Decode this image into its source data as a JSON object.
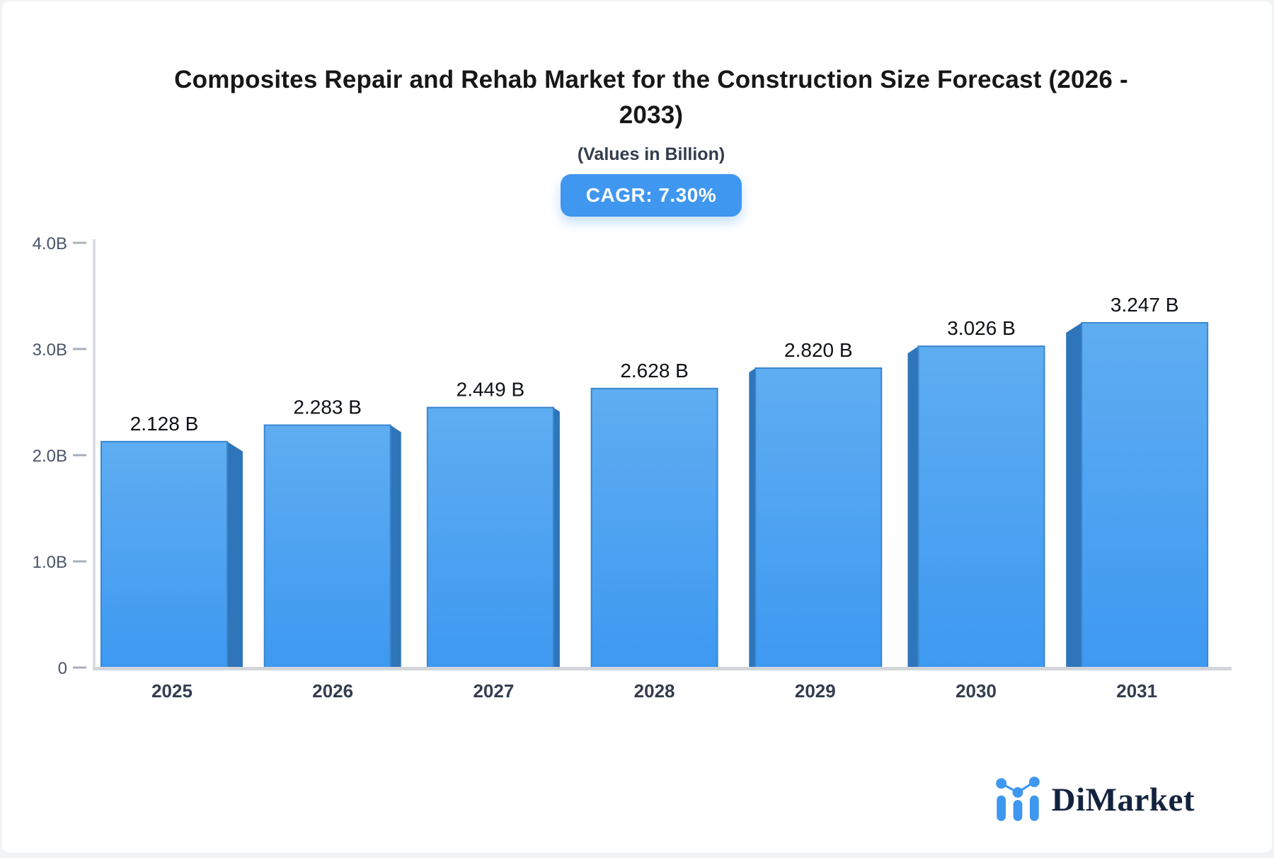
{
  "page": {
    "background_color": "#f2f3f5",
    "card_color": "#ffffff"
  },
  "header": {
    "title_lines": [
      "Composites Repair and Rehab Market for the Construction Size Forecast (2026 -",
      "2033)"
    ],
    "subtitle": "(Values in Billion)",
    "badge": {
      "label": "CAGR: 7.30%",
      "background": "#3F97F0",
      "text_color": "#ffffff"
    }
  },
  "chart_data": {
    "type": "bar",
    "title": "Composites Repair and Rehab Market for the Construction Size Forecast (2026 - 2033)",
    "subtitle": "(Values in Billion)",
    "cagr": "7.30%",
    "categories": [
      "2025",
      "2026",
      "2027",
      "2028",
      "2029",
      "2030",
      "2031"
    ],
    "values": [
      2.128,
      2.283,
      2.449,
      2.628,
      2.82,
      3.026,
      3.247
    ],
    "value_labels": [
      "2.128 B",
      "2.283 B",
      "2.449 B",
      "2.628 B",
      "2.820 B",
      "3.026 B",
      "3.247 B"
    ],
    "unit": "Billion",
    "xlabel": "",
    "ylabel": "",
    "ylim": [
      0,
      4
    ],
    "y_tick_values": [
      0,
      1,
      2,
      3,
      4
    ],
    "y_tick_labels": [
      "0",
      "1.0B",
      "2.0B",
      "3.0B",
      "4.0B"
    ],
    "grid": false,
    "legend": false,
    "bar_style_3d": true,
    "colors": {
      "bar_top": "#5FADF1",
      "bar_bottom": "#3E99F1",
      "bar_border": "#3A86CE",
      "bar_side": "#2E75B9",
      "axis_line": "#DADDE2",
      "baseline": "#D2D5DA",
      "tick_dash": "#A8AFBB"
    }
  },
  "footer": {
    "logo_text": "DiMarket",
    "logo_icon": "bar-line-chart-icon"
  }
}
